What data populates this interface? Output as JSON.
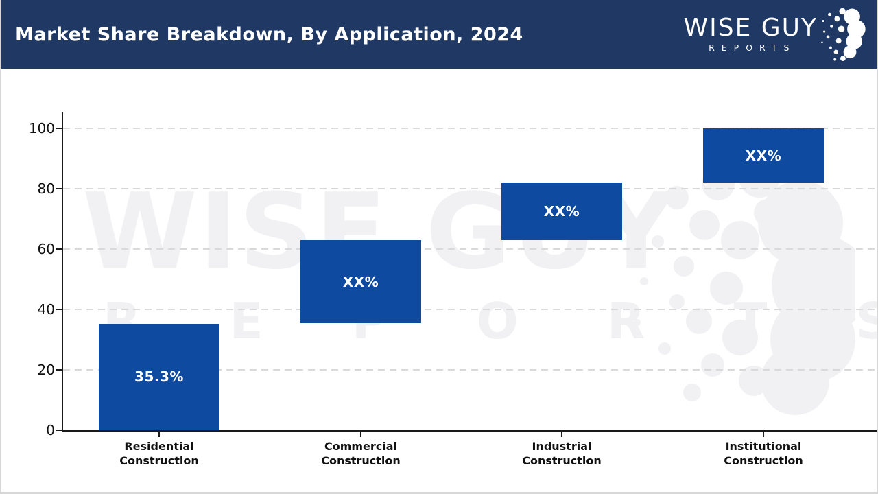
{
  "header": {
    "title": "Market Share Breakdown, By Application, 2024",
    "bg_color": "#1f3864",
    "logo": {
      "name": "WISE GUY",
      "tagline": "REPORTS"
    }
  },
  "watermark": {
    "line1": "WISE GUY",
    "line2": "R E P O R T S"
  },
  "chart_data": {
    "type": "bar",
    "subtype": "waterfall-stacked-percent",
    "title": "Market Share Breakdown, By Application, 2024",
    "categories": [
      "Residential\nConstruction",
      "Commercial\nConstruction",
      "Industrial\nConstruction",
      "Institutional\nConstruction"
    ],
    "series": [
      {
        "name": "Residential Construction",
        "label": "35.3%",
        "start": 0,
        "end": 35.3
      },
      {
        "name": "Commercial Construction",
        "label": "XX%",
        "start": 35.3,
        "end": 62.8
      },
      {
        "name": "Industrial Construction",
        "label": "XX%",
        "start": 62.8,
        "end": 82.0
      },
      {
        "name": "Institutional Construction",
        "label": "XX%",
        "start": 82.0,
        "end": 99.8
      }
    ],
    "y_ticks": [
      0,
      20,
      40,
      60,
      80,
      100
    ],
    "ylim": [
      0,
      105
    ],
    "xlabel": "",
    "ylabel": "",
    "grid": "dashed horizontal",
    "legend": "none",
    "bar_color": "#0d4aa0",
    "bar_label_color": "#ffffff",
    "grid_color": "#d9d9d9",
    "axis_color": "#1a1a1a"
  }
}
